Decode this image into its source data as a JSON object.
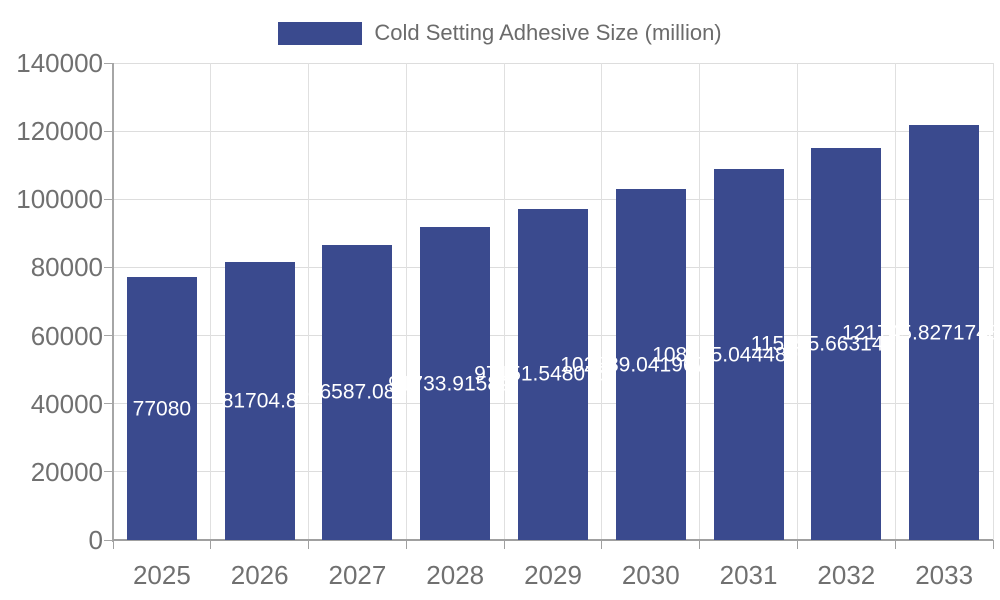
{
  "legend": {
    "label": "Cold Setting Adhesive Size (million)",
    "swatch_color": "#3A4A8E"
  },
  "chart_data": {
    "type": "bar",
    "title": "Cold Setting Adhesive Size (million)",
    "series_name": "Cold Setting Adhesive Size (million)",
    "categories": [
      "2025",
      "2026",
      "2027",
      "2028",
      "2029",
      "2030",
      "2031",
      "2032",
      "2033"
    ],
    "values": [
      77080,
      81704.8,
      86587.088,
      91733.915828,
      97151.54807576,
      102889.041967272,
      108815.0444890832,
      115155.6631480882,
      121745.82717480882
    ],
    "xlabel": "",
    "ylabel": "",
    "ylim": [
      0,
      140000
    ],
    "ytick_interval": 20000,
    "yticks": [
      "0",
      "20000",
      "40000",
      "60000",
      "80000",
      "100000",
      "120000",
      "140000"
    ],
    "grid": true,
    "legend_position": "top",
    "bar_color": "#3A4A8E",
    "bar_label_color": "#ffffff",
    "axis_label_color": "#707070",
    "gridline_color": "#dddddd",
    "axis_line_color": "#a6a6a6"
  }
}
